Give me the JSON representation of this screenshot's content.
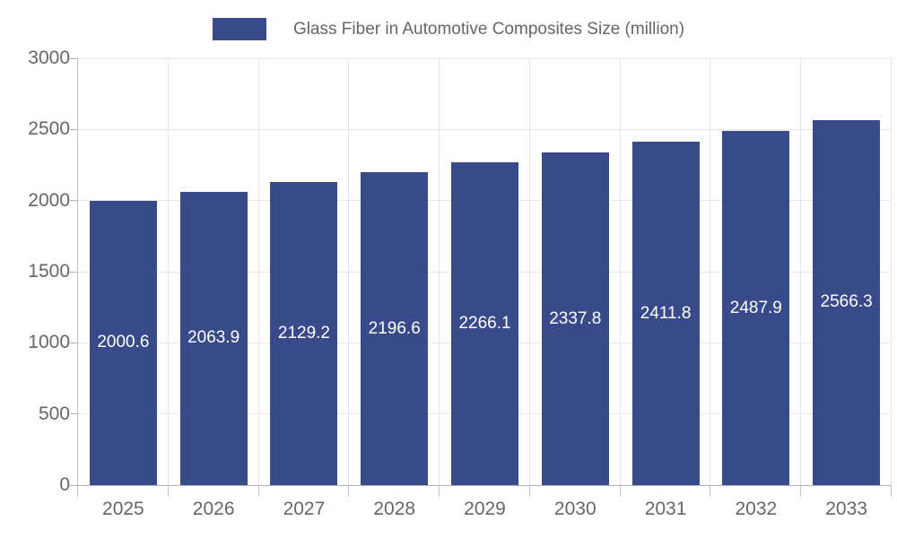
{
  "legend": {
    "label": "Glass Fiber in Automotive Composites Size (million)"
  },
  "chart_data": {
    "type": "bar",
    "title": "Glass Fiber in Automotive Composites Size (million)",
    "categories": [
      "2025",
      "2026",
      "2027",
      "2028",
      "2029",
      "2030",
      "2031",
      "2032",
      "2033"
    ],
    "values": [
      2000.6,
      2063.9,
      2129.2,
      2196.6,
      2266.1,
      2337.8,
      2411.8,
      2487.9,
      2566.3
    ],
    "value_labels": [
      "2000.6",
      "2063.9",
      "2129.2",
      "2196.6",
      "2266.1",
      "2337.8",
      "2411.8",
      "2487.9",
      "2566.3"
    ],
    "xlabel": "",
    "ylabel": "",
    "ylim": [
      0,
      3000
    ],
    "yticks": [
      0,
      500,
      1000,
      1500,
      2000,
      2500,
      3000
    ],
    "grid": true,
    "legend_position": "top"
  },
  "colors": {
    "bar": "#394A8A",
    "bar_label": "#ffffff",
    "grid": "#e6e6e6",
    "axis": "#b0b0b0",
    "text": "#666666",
    "background": "#ffffff"
  }
}
